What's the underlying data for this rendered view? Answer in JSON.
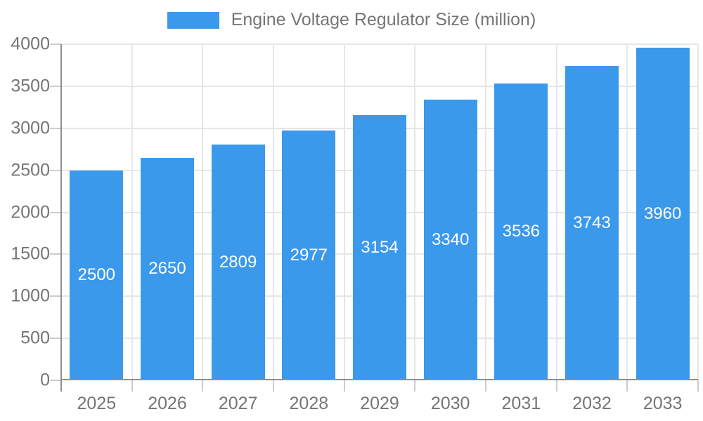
{
  "chart_data": {
    "type": "bar",
    "title": "Engine Voltage Regulator Size (million)",
    "categories": [
      "2025",
      "2026",
      "2027",
      "2028",
      "2029",
      "2030",
      "2031",
      "2032",
      "2033"
    ],
    "series": [
      {
        "name": "Engine Voltage Regulator Size (million)",
        "values": [
          2500,
          2650,
          2809,
          2977,
          3154,
          3340,
          3536,
          3743,
          3960
        ],
        "color": "#3B99EC"
      }
    ],
    "xlabel": "",
    "ylabel": "",
    "ylim": [
      0,
      4000
    ],
    "yticks": [
      0,
      500,
      1000,
      1500,
      2000,
      2500,
      3000,
      3500,
      4000
    ],
    "grid": true,
    "legend_position": "top-center",
    "value_labels": "inside-center",
    "colors": {
      "bar": "#3B99EC",
      "bar_label": "#FFFFFF",
      "axis_text": "#757575",
      "gridline": "#E6E6E6",
      "tick": "#CCCCCC",
      "axis_line": "#8F8F8F",
      "background": "#FFFFFF"
    }
  }
}
